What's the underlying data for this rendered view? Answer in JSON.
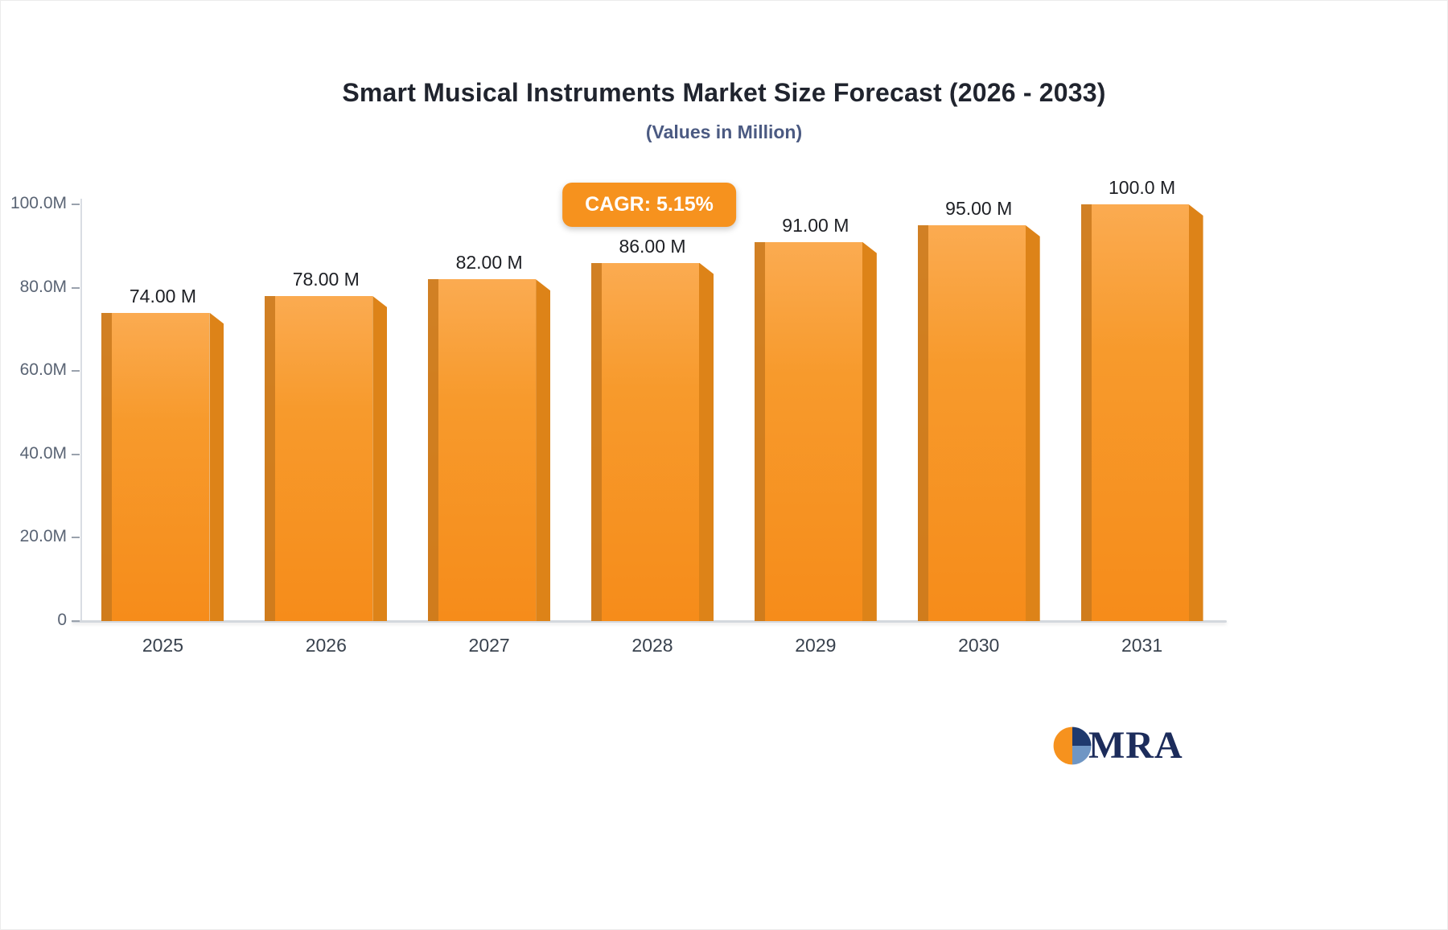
{
  "header": {
    "title": "Smart Musical Instruments Market Size Forecast (2026 - 2033)",
    "subtitle": "(Values in Million)"
  },
  "badge": {
    "label": "CAGR: 5.15%"
  },
  "logo": {
    "text": "MRA"
  },
  "chart_data": {
    "type": "bar",
    "title": "Smart Musical Instruments Market Size Forecast (2026 - 2033)",
    "subtitle": "(Values in Million)",
    "unit": "Million",
    "categories": [
      "2025",
      "2026",
      "2027",
      "2028",
      "2029",
      "2030",
      "2031"
    ],
    "values": [
      74,
      78,
      82,
      86,
      91,
      95,
      100
    ],
    "value_labels": [
      "74.00 M",
      "78.00 M",
      "82.00 M",
      "86.00 M",
      "91.00 M",
      "95.00 M",
      "100.0 M"
    ],
    "ylim": [
      0,
      100
    ],
    "yticks": [
      0,
      20,
      40,
      60,
      80,
      100
    ],
    "ytick_labels": [
      "0",
      "20.0M",
      "40.0M",
      "60.0M",
      "80.0M",
      "100.0M"
    ],
    "xlabel": "",
    "ylabel": "",
    "grid": "off",
    "legend_position": "none",
    "annotations": [
      "CAGR: 5.15%"
    ],
    "colors": {
      "bar_main": "#f6921e",
      "bar_light": "#fbab51",
      "bar_side": "#dd8318",
      "bar_edge": "#c9791d",
      "badge_bg": "#f6921e",
      "badge_text": "#ffffff",
      "title_text": "#20242e",
      "subtitle_text": "#4b5a82",
      "axis_line": "#d4d8de",
      "tick_text": "#5a6474",
      "logo_navy": "#1c2c5b"
    }
  }
}
